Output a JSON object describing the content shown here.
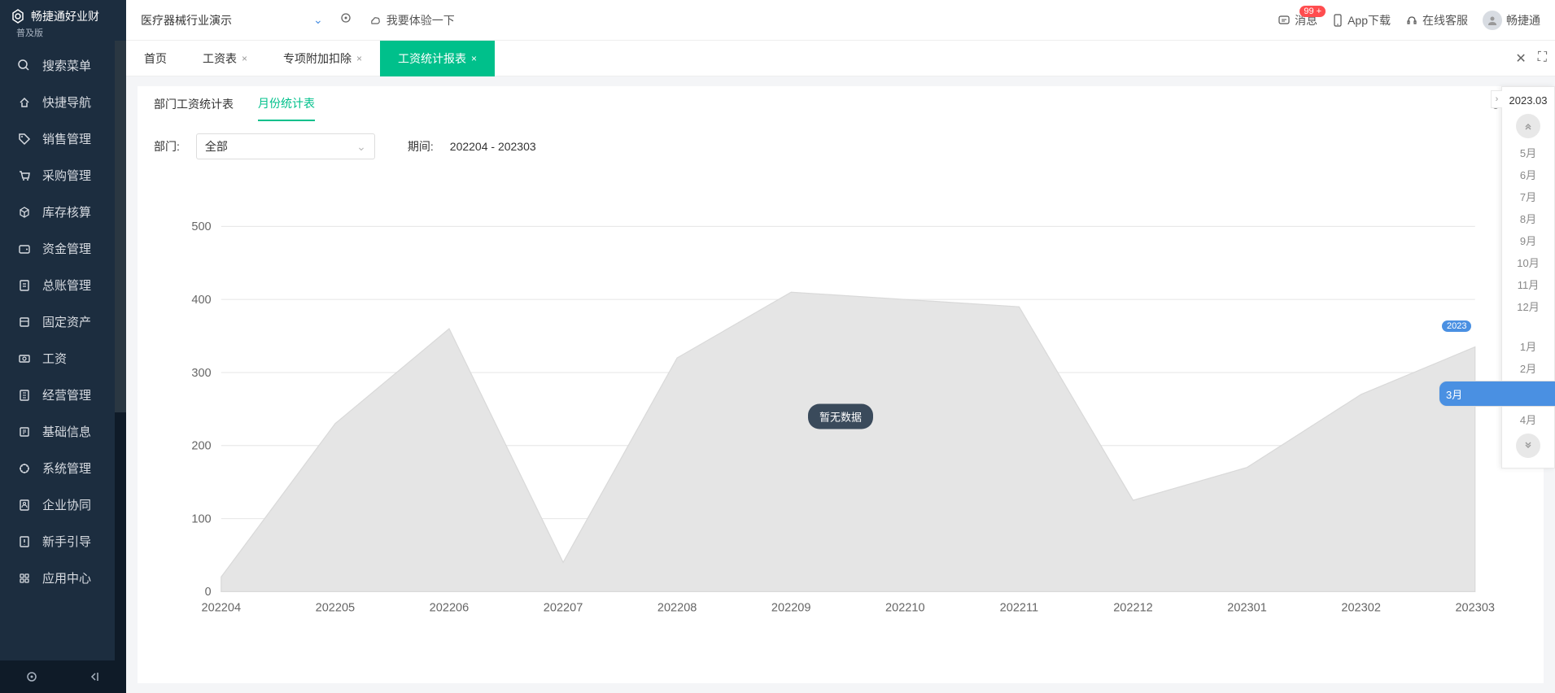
{
  "brand": {
    "name": "畅捷通好业财",
    "sub": "普及版"
  },
  "sidebar": {
    "items": [
      {
        "icon": "search",
        "label": "搜索菜单"
      },
      {
        "icon": "home",
        "label": "快捷导航"
      },
      {
        "icon": "tag",
        "label": "销售管理"
      },
      {
        "icon": "cart",
        "label": "采购管理"
      },
      {
        "icon": "box",
        "label": "库存核算"
      },
      {
        "icon": "wallet",
        "label": "资金管理"
      },
      {
        "icon": "ledger",
        "label": "总账管理"
      },
      {
        "icon": "asset",
        "label": "固定资产"
      },
      {
        "icon": "pay",
        "label": "工资"
      },
      {
        "icon": "biz",
        "label": "经营管理"
      },
      {
        "icon": "info",
        "label": "基础信息"
      },
      {
        "icon": "sys",
        "label": "系统管理"
      },
      {
        "icon": "team",
        "label": "企业协同"
      },
      {
        "icon": "guide",
        "label": "新手引导"
      },
      {
        "icon": "apps",
        "label": "应用中心"
      }
    ]
  },
  "topbar": {
    "project": "医疗器械行业演示",
    "trial": "我要体验一下",
    "links": {
      "msg": "消息",
      "badge": "99 +",
      "app": "App下载",
      "service": "在线客服",
      "user": "畅捷通"
    }
  },
  "tabs": [
    {
      "label": "首页",
      "closable": false
    },
    {
      "label": "工资表",
      "closable": true
    },
    {
      "label": "专项附加扣除",
      "closable": true
    },
    {
      "label": "工资统计报表",
      "closable": true,
      "active": true
    }
  ],
  "subtabs": [
    {
      "label": "部门工资统计表"
    },
    {
      "label": "月份统计表",
      "active": true
    }
  ],
  "refresh": "刷新",
  "filters": {
    "dept_label": "部门:",
    "dept_value": "全部",
    "period_label": "期间:",
    "period_value": "202204 - 202303"
  },
  "chart": {
    "type": "area",
    "no_data": "暂无数据",
    "ylim": [
      0,
      500
    ],
    "ytick_step": 100,
    "categories": [
      "202204",
      "202205",
      "202206",
      "202207",
      "202208",
      "202209",
      "202210",
      "202211",
      "202212",
      "202301",
      "202302",
      "202303"
    ],
    "values": [
      20,
      230,
      360,
      40,
      320,
      410,
      400,
      390,
      125,
      170,
      270,
      335
    ],
    "fill_color": "#e5e5e5",
    "line_color": "#d9d9d9",
    "bg_color": "#ffffff",
    "grid_color": "#e9e9e9",
    "axis_color": "#666666",
    "label_fontsize": 12
  },
  "month_panel": {
    "current": "2023.03",
    "months": [
      "5月",
      "6月",
      "7月",
      "8月",
      "9月",
      "10月",
      "11月",
      "12月"
    ],
    "year_tag": "2023",
    "months2": [
      "1月",
      "2月",
      "3月",
      "4月"
    ],
    "selected": "3月"
  }
}
